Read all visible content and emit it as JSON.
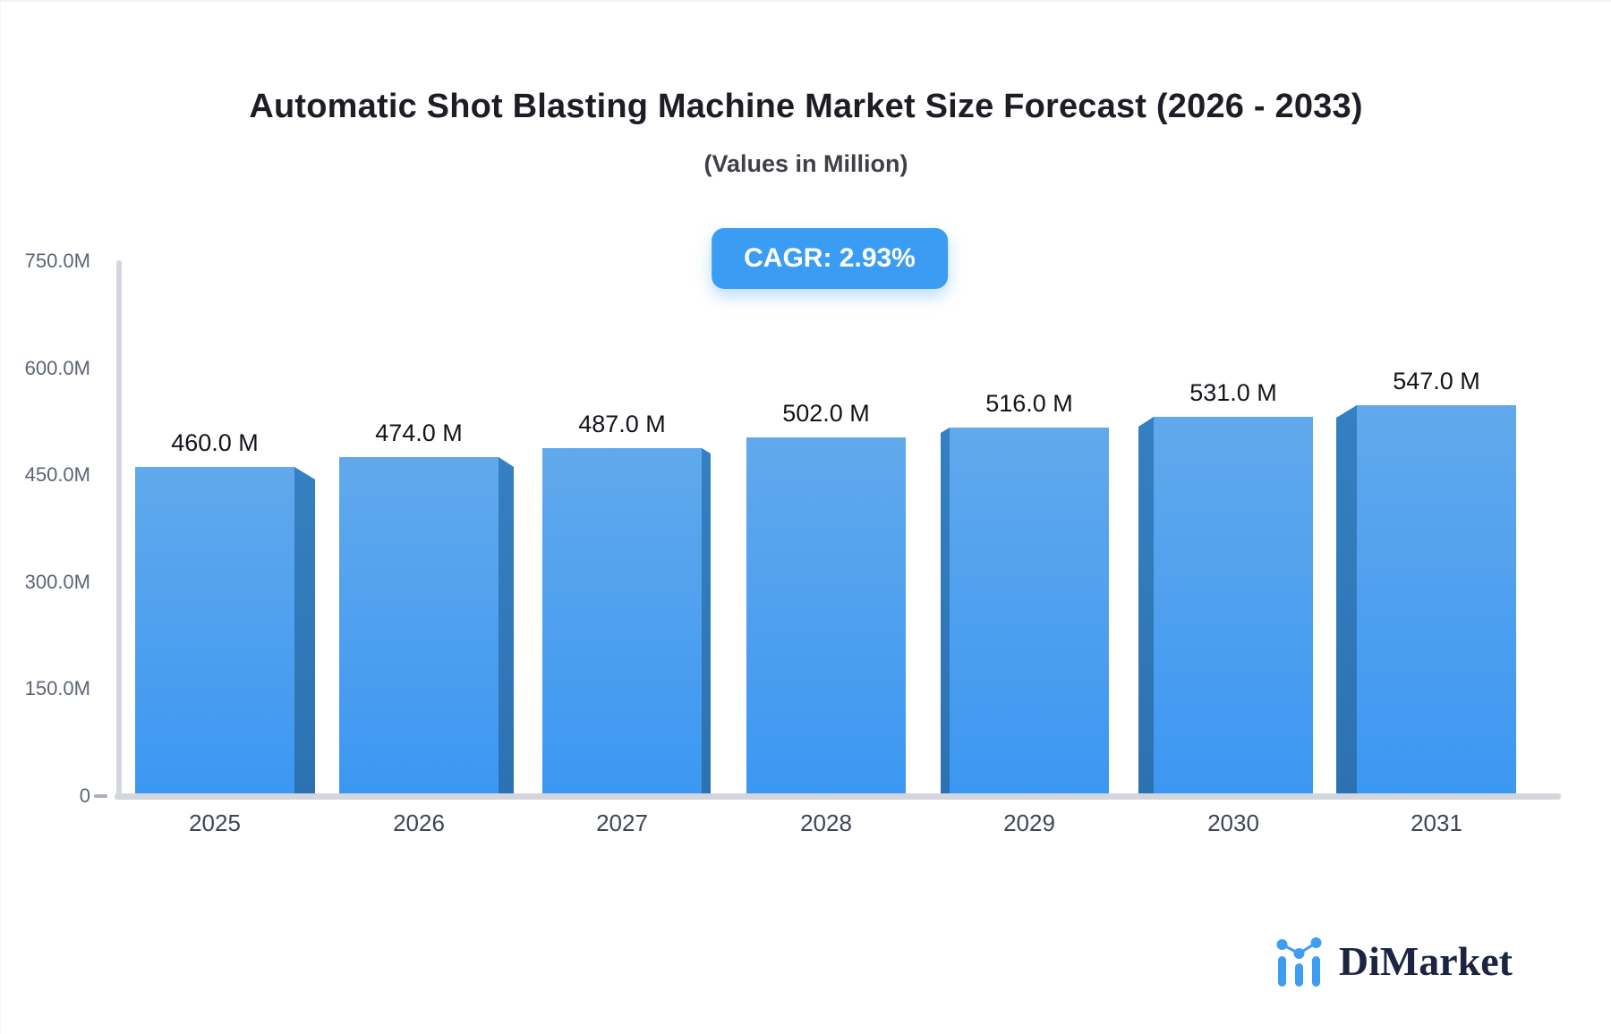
{
  "title": "Automatic Shot Blasting Machine Market Size Forecast (2026 - 2033)",
  "subtitle": "(Values in Million)",
  "badge": {
    "label": "CAGR: 2.93%"
  },
  "chart_data": {
    "type": "bar",
    "categories": [
      "2025",
      "2026",
      "2027",
      "2028",
      "2029",
      "2030",
      "2031"
    ],
    "values": [
      460,
      474,
      487,
      502,
      516,
      531,
      547
    ],
    "value_labels": [
      "460.0 M",
      "474.0 M",
      "487.0 M",
      "502.0 M",
      "516.0 M",
      "531.0 M",
      "547.0 M"
    ],
    "yticks": [
      "750.0M",
      "600.0M",
      "450.0M",
      "300.0M",
      "150.0M",
      "0"
    ],
    "ylim": [
      0,
      750
    ],
    "xlabel": "",
    "ylabel": "",
    "grid": false,
    "legend": "none",
    "bar_style": "3d-perspective"
  },
  "colors": {
    "accent": "#3b9cf3",
    "badge-text": "#ffffff",
    "bar-top": "#61a9ec",
    "bar-bottom": "#3c97f2",
    "bar-side": "#2e76b8",
    "axis": "#d3d7dd",
    "title": "#1d1d26",
    "subtitle": "#3f3f48",
    "ylabel": "#5c6474",
    "xlabel": "#3f4654",
    "value-label": "#121419",
    "logo": "#1b2440"
  },
  "logo": {
    "text": "DiMarket",
    "icon": "mini-bar-chart-icon"
  }
}
